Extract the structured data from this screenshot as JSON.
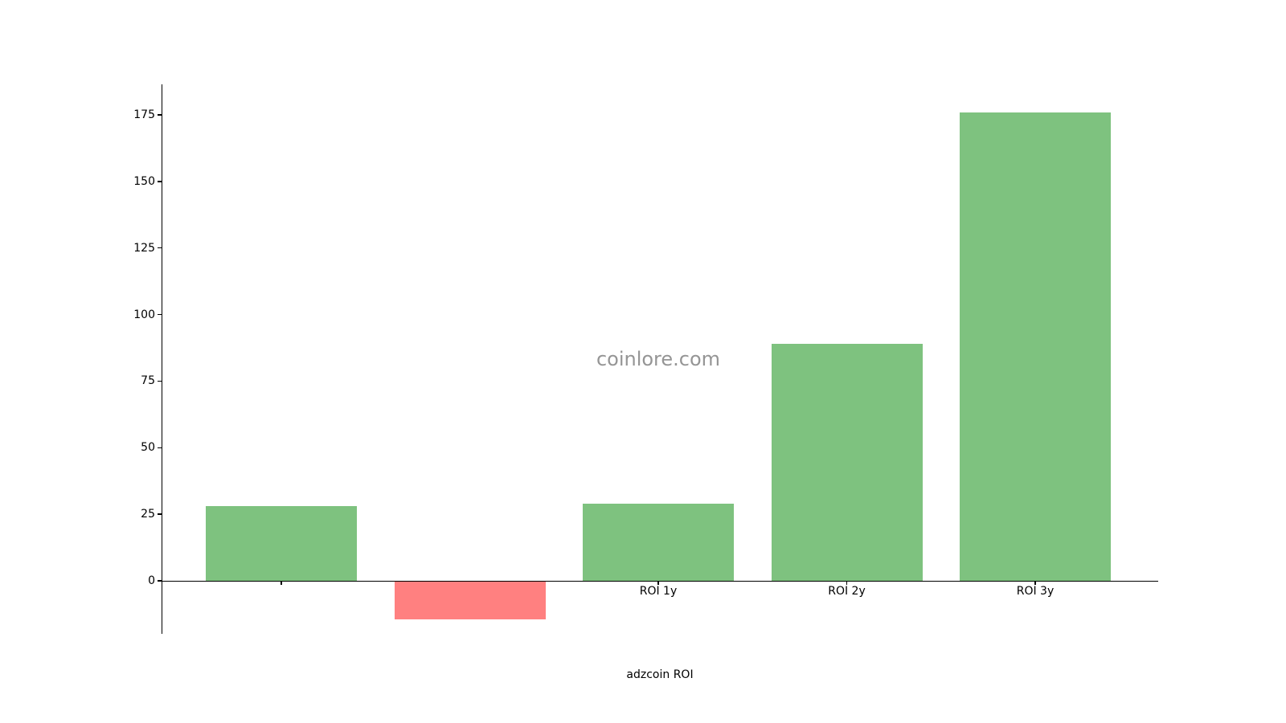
{
  "chart_data": {
    "type": "bar",
    "title": "",
    "xlabel": "adzcoin ROI",
    "ylabel": "",
    "categories": [
      "",
      "",
      "ROI 1y",
      "ROI 2y",
      "ROI 3y"
    ],
    "values": [
      28,
      -14,
      29,
      89,
      176
    ],
    "yticks": [
      0,
      25,
      50,
      75,
      100,
      125,
      150,
      175
    ],
    "ylim": [
      -20,
      186.5
    ],
    "grid": false,
    "legend": "none",
    "positive_color": "#7ec27f",
    "negative_color": "#ff8080",
    "axis_color": "#000000",
    "watermark": "coinlore.com"
  }
}
